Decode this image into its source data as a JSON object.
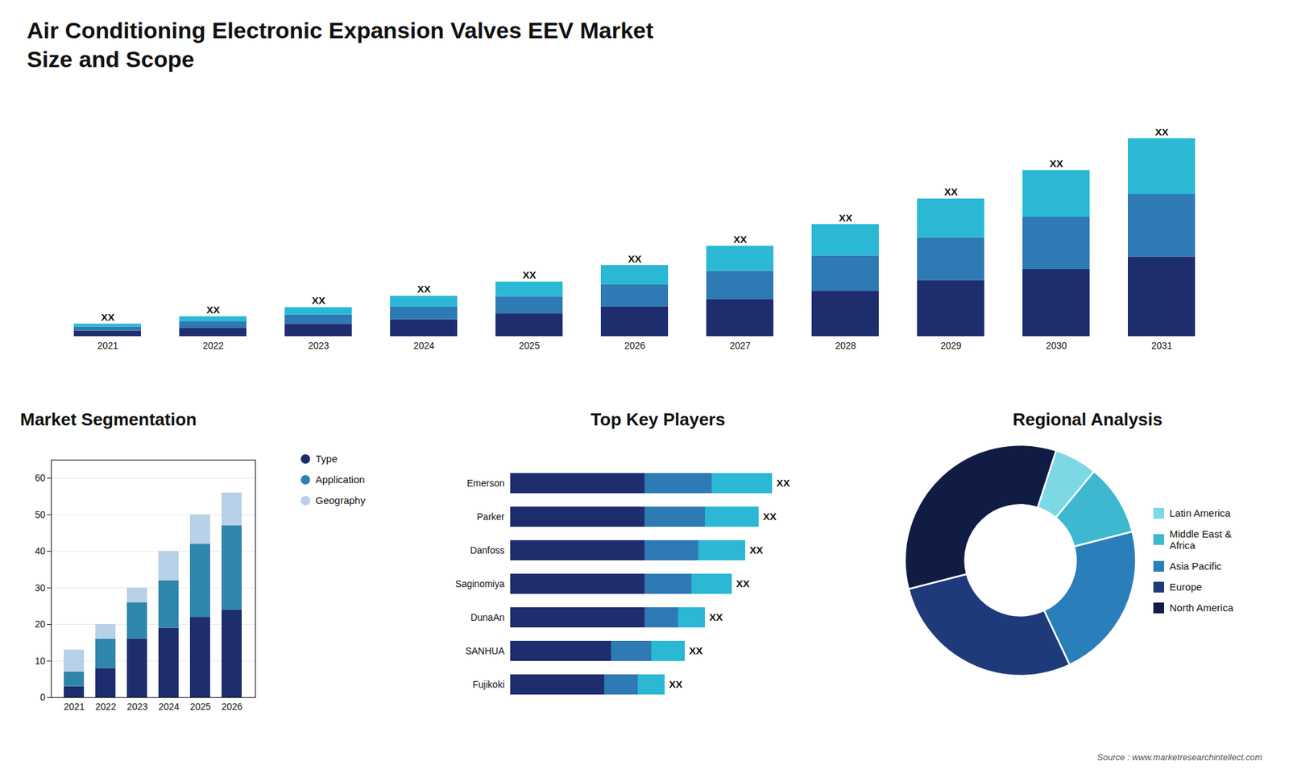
{
  "chart_data": [
    {
      "type": "bar",
      "title": "Air Conditioning Electronic Expansion Valves EEV Market",
      "subtitle": "Size and Scope",
      "stacked": true,
      "categories": [
        "2021",
        "2022",
        "2023",
        "2024",
        "2025",
        "2026",
        "2027",
        "2028",
        "2029",
        "2030",
        "2031"
      ],
      "series": [
        {
          "color": "#1e2d6e",
          "values": [
            1.0,
            1.5,
            2.2,
            3.0,
            4.0,
            5.2,
            6.5,
            8.0,
            9.8,
            11.8,
            14.0
          ]
        },
        {
          "color": "#2e7ab5",
          "values": [
            0.7,
            1.1,
            1.6,
            2.2,
            3.0,
            3.9,
            5.0,
            6.2,
            7.6,
            9.2,
            11.0
          ]
        },
        {
          "color": "#2ab8d4",
          "values": [
            0.5,
            0.9,
            1.3,
            1.9,
            2.6,
            3.4,
            4.4,
            5.5,
            6.8,
            8.2,
            9.8
          ]
        }
      ],
      "ylim": [
        0,
        41.76
      ],
      "data_labels": true,
      "value_labels": [
        "XX",
        "XX",
        "XX",
        "XX",
        "XX",
        "XX",
        "XX",
        "XX",
        "XX",
        "XX",
        "XX"
      ],
      "tick_labels": "x",
      "grid": false
    },
    {
      "type": "bar",
      "title": "Market Segmentation",
      "stacked": true,
      "categories": [
        "2021",
        "2022",
        "2023",
        "2024",
        "2025",
        "2026"
      ],
      "series": [
        {
          "name": "Type",
          "color": "#1e2d6e",
          "values": [
            3,
            8,
            16,
            19,
            22,
            24
          ]
        },
        {
          "name": "Application",
          "color": "#2e86ab",
          "values": [
            4,
            8,
            10,
            13,
            20,
            23
          ]
        },
        {
          "name": "Geography",
          "color": "#b8d0e8",
          "values": [
            6,
            4,
            4,
            8,
            8,
            9
          ]
        }
      ],
      "ylim": [
        0,
        65
      ],
      "yticks": [
        0,
        10,
        20,
        30,
        40,
        50,
        60
      ],
      "grid": true,
      "legend": "right"
    },
    {
      "type": "bar",
      "orientation": "horizontal",
      "title": "Top Key Players",
      "stacked": true,
      "categories": [
        "Emerson",
        "Parker",
        "Danfoss",
        "Saginomiya",
        "DunaAn",
        "SANHUA",
        "Fujikoki"
      ],
      "series": [
        {
          "color": "#1e2d6e",
          "values": [
            0.4,
            0.4,
            0.4,
            0.4,
            0.4,
            0.3,
            0.28
          ]
        },
        {
          "color": "#2e7ab5",
          "values": [
            0.2,
            0.18,
            0.16,
            0.14,
            0.1,
            0.12,
            0.1
          ]
        },
        {
          "color": "#2ab8d4",
          "values": [
            0.18,
            0.16,
            0.14,
            0.12,
            0.08,
            0.1,
            0.08
          ]
        }
      ],
      "xlim": [
        0,
        1
      ],
      "data_labels": true,
      "value_labels": [
        "XX",
        "XX",
        "XX",
        "XX",
        "XX",
        "XX",
        "XX"
      ],
      "tick_labels": "y",
      "grid": false
    },
    {
      "type": "donut",
      "title": "Regional Analysis",
      "categories": [
        "Latin America",
        "Middle East &\nAfrica",
        "Asia Pacific",
        "Europe",
        "North America"
      ],
      "values": [
        6,
        10,
        22,
        28,
        34
      ],
      "colors": [
        "#7dd8e6",
        "#3db8d0",
        "#2a7fba",
        "#1e3a7a",
        "#111c45"
      ],
      "legend": "right",
      "annotations": [
        "Source : www.marketresearchintellect.com"
      ]
    }
  ]
}
